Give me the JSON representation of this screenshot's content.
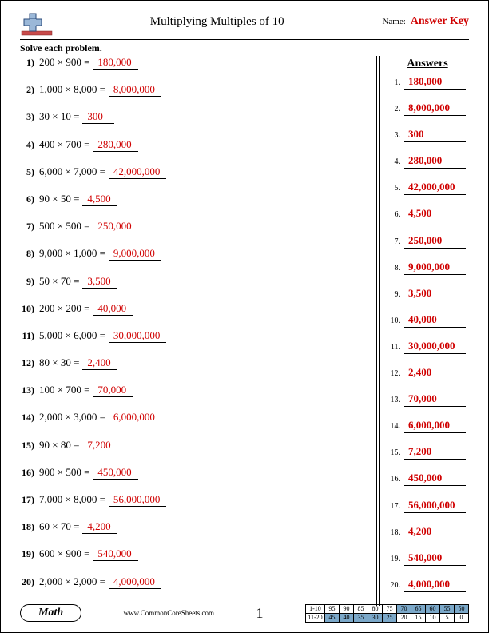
{
  "header": {
    "title": "Multiplying Multiples of 10",
    "name_label": "Name:",
    "answer_key": "Answer Key"
  },
  "instruction": "Solve each problem.",
  "answers_heading": "Answers",
  "problems": [
    {
      "n": "1)",
      "expr": "200 × 900 =",
      "ans": "180,000"
    },
    {
      "n": "2)",
      "expr": "1,000 × 8,000 =",
      "ans": "8,000,000"
    },
    {
      "n": "3)",
      "expr": "30 × 10 =",
      "ans": "300"
    },
    {
      "n": "4)",
      "expr": "400 × 700 =",
      "ans": "280,000"
    },
    {
      "n": "5)",
      "expr": "6,000 × 7,000 =",
      "ans": "42,000,000"
    },
    {
      "n": "6)",
      "expr": "90 × 50 =",
      "ans": "4,500"
    },
    {
      "n": "7)",
      "expr": "500 × 500 =",
      "ans": "250,000"
    },
    {
      "n": "8)",
      "expr": "9,000 × 1,000 =",
      "ans": "9,000,000"
    },
    {
      "n": "9)",
      "expr": "50 × 70 =",
      "ans": "3,500"
    },
    {
      "n": "10)",
      "expr": "200 × 200 =",
      "ans": "40,000"
    },
    {
      "n": "11)",
      "expr": "5,000 × 6,000 =",
      "ans": "30,000,000"
    },
    {
      "n": "12)",
      "expr": "80 × 30 =",
      "ans": "2,400"
    },
    {
      "n": "13)",
      "expr": "100 × 700 =",
      "ans": "70,000"
    },
    {
      "n": "14)",
      "expr": "2,000 × 3,000 =",
      "ans": "6,000,000"
    },
    {
      "n": "15)",
      "expr": "90 × 80 =",
      "ans": "7,200"
    },
    {
      "n": "16)",
      "expr": "900 × 500 =",
      "ans": "450,000"
    },
    {
      "n": "17)",
      "expr": "7,000 × 8,000 =",
      "ans": "56,000,000"
    },
    {
      "n": "18)",
      "expr": "60 × 70 =",
      "ans": "4,200"
    },
    {
      "n": "19)",
      "expr": "600 × 900 =",
      "ans": "540,000"
    },
    {
      "n": "20)",
      "expr": "2,000 × 2,000 =",
      "ans": "4,000,000"
    }
  ],
  "answers": [
    {
      "n": "1.",
      "v": "180,000"
    },
    {
      "n": "2.",
      "v": "8,000,000"
    },
    {
      "n": "3.",
      "v": "300"
    },
    {
      "n": "4.",
      "v": "280,000"
    },
    {
      "n": "5.",
      "v": "42,000,000"
    },
    {
      "n": "6.",
      "v": "4,500"
    },
    {
      "n": "7.",
      "v": "250,000"
    },
    {
      "n": "8.",
      "v": "9,000,000"
    },
    {
      "n": "9.",
      "v": "3,500"
    },
    {
      "n": "10.",
      "v": "40,000"
    },
    {
      "n": "11.",
      "v": "30,000,000"
    },
    {
      "n": "12.",
      "v": "2,400"
    },
    {
      "n": "13.",
      "v": "70,000"
    },
    {
      "n": "14.",
      "v": "6,000,000"
    },
    {
      "n": "15.",
      "v": "7,200"
    },
    {
      "n": "16.",
      "v": "450,000"
    },
    {
      "n": "17.",
      "v": "56,000,000"
    },
    {
      "n": "18.",
      "v": "4,200"
    },
    {
      "n": "19.",
      "v": "540,000"
    },
    {
      "n": "20.",
      "v": "4,000,000"
    }
  ],
  "footer": {
    "subject": "Math",
    "url": "www.CommonCoreSheets.com",
    "page": "1",
    "score_row1_label": "1-10",
    "score_row2_label": "11-20",
    "row1": [
      "95",
      "90",
      "85",
      "80",
      "75",
      "70",
      "65",
      "60",
      "55",
      "50"
    ],
    "row2": [
      "45",
      "40",
      "35",
      "30",
      "25",
      "20",
      "15",
      "10",
      "5",
      "0"
    ]
  },
  "colors": {
    "answer_red": "#d00000",
    "shaded_blue": "#7ba8c9",
    "cross_blue": "#9bb8d8",
    "cross_border": "#2a4a7a",
    "base_red": "#c84a4a"
  }
}
